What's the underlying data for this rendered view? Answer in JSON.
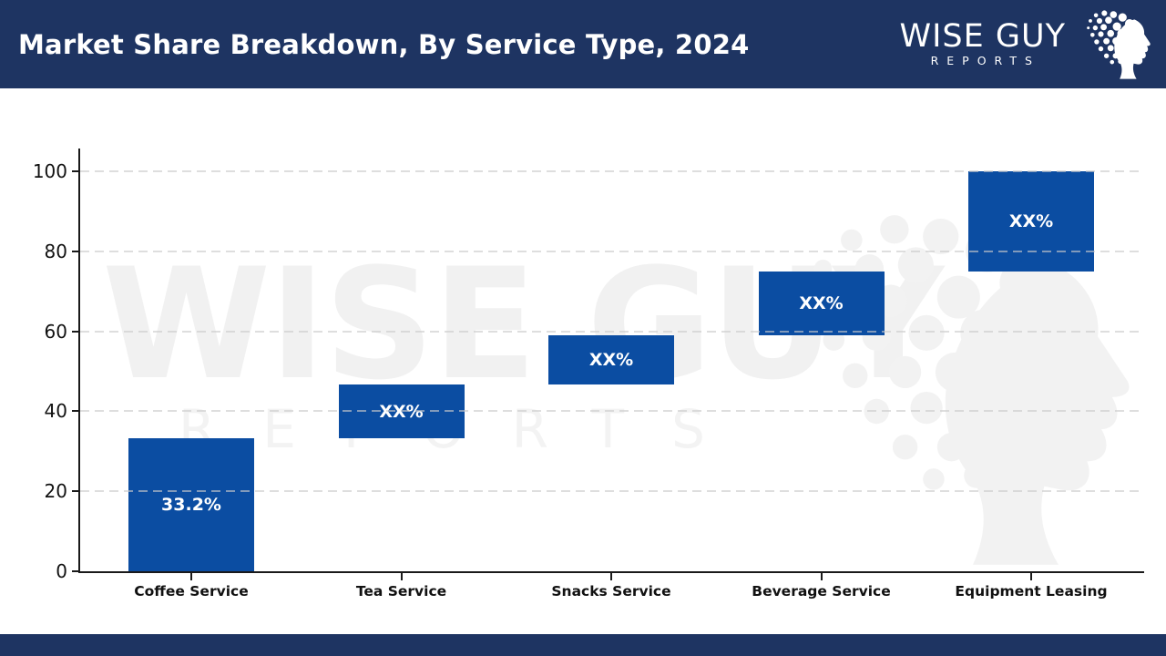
{
  "header": {
    "title": "Market Share Breakdown, By Service Type, 2024",
    "logo": {
      "line1": "WISE GUY",
      "line2": "REPORTS"
    }
  },
  "watermark": {
    "line1": "WISE GUY",
    "line2": "REPORTS"
  },
  "chart_data": {
    "type": "bar",
    "subtype": "waterfall",
    "title": "Market Share Breakdown, By Service Type, 2024",
    "categories": [
      "Coffee Service",
      "Tea Service",
      "Snacks Service",
      "Beverage Service",
      "Equipment Leasing"
    ],
    "segments": [
      {
        "category": "Coffee Service",
        "start": 0,
        "end": 33.2,
        "label": "33.2%"
      },
      {
        "category": "Tea Service",
        "start": 33.2,
        "end": 46.7,
        "label": "XX%"
      },
      {
        "category": "Snacks Service",
        "start": 46.7,
        "end": 59.0,
        "label": "XX%"
      },
      {
        "category": "Beverage Service",
        "start": 59.0,
        "end": 74.9,
        "label": "XX%"
      },
      {
        "category": "Equipment Leasing",
        "start": 74.9,
        "end": 100.0,
        "label": "XX%"
      }
    ],
    "xlabel": "",
    "ylabel": "",
    "ylim": [
      0,
      100
    ],
    "yticks": [
      0,
      20,
      40,
      60,
      80,
      100
    ],
    "grid": "horizontal dashed, drawn over bars",
    "legend": "none",
    "bar_color": "#0b4da2",
    "bar_label_color": "#ffffff"
  },
  "colors": {
    "header_bg": "#1e3462",
    "footer_bg": "#1e3462",
    "bar": "#0b4da2",
    "axis": "#1a1a1a",
    "background": "#ffffff",
    "watermark": "#f2f2f2"
  }
}
